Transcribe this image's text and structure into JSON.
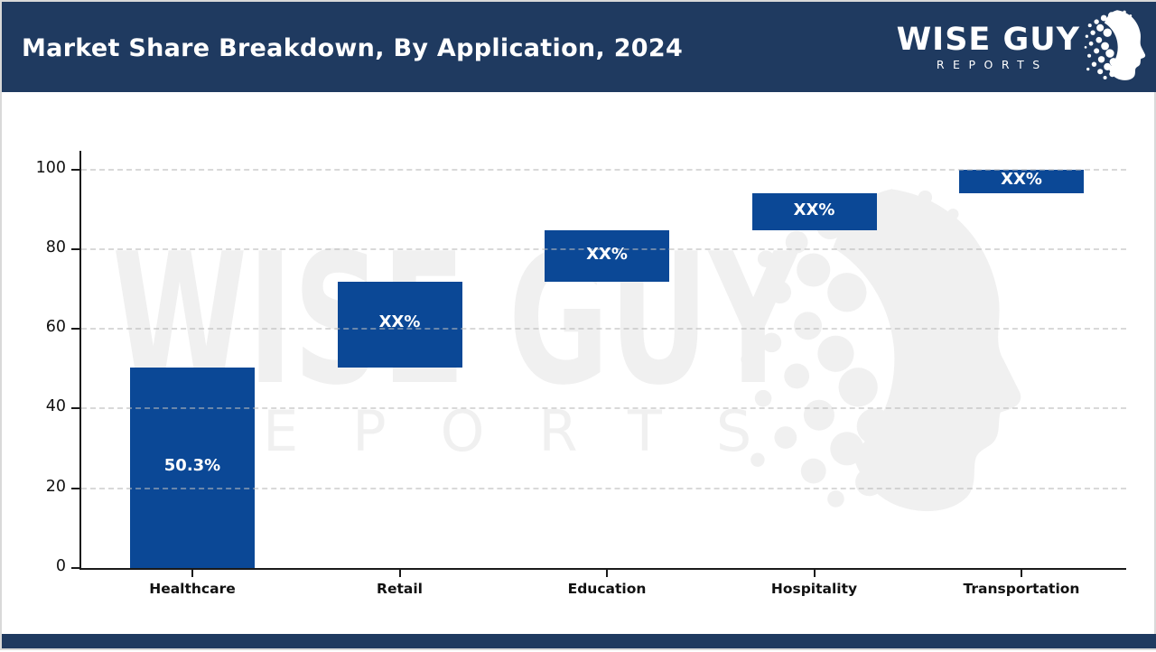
{
  "header": {
    "title": "Market Share Breakdown, By Application, 2024",
    "logo": {
      "line1": "WISE GUY",
      "line2": "REPORTS",
      "face_icon": "dotted-face-profile-icon"
    }
  },
  "watermark": {
    "line1": "WISE GUY",
    "line2": "REPORTS",
    "face_icon": "dotted-face-profile-icon"
  },
  "colors": {
    "header_bg": "#1f3a60",
    "footer_bg": "#1f3a60",
    "bar": "#0b4896",
    "bar_label": "#ffffff",
    "axis": "#1a1a1a",
    "tick_label": "#111111",
    "gridline": "#bbbbbb",
    "watermark": "#f0f0f0",
    "background": "#ffffff"
  },
  "chart_data": {
    "type": "bar",
    "subtype": "waterfall",
    "title": "Market Share Breakdown, By Application, 2024",
    "categories": [
      "Healthcare",
      "Retail",
      "Education",
      "Hospitality",
      "Transportation"
    ],
    "segments": [
      {
        "category": "Healthcare",
        "start": 0,
        "end": 50.3,
        "label": "50.3%"
      },
      {
        "category": "Retail",
        "start": 50.3,
        "end": 71.8,
        "label": "XX%"
      },
      {
        "category": "Education",
        "start": 71.8,
        "end": 84.7,
        "label": "XX%"
      },
      {
        "category": "Hospitality",
        "start": 84.7,
        "end": 93.9,
        "label": "XX%"
      },
      {
        "category": "Transportation",
        "start": 93.9,
        "end": 100,
        "label": "XX%"
      }
    ],
    "xlabel": "",
    "ylabel": "",
    "yticks": [
      0,
      20,
      40,
      60,
      80,
      100
    ],
    "ylim": [
      0,
      104.6
    ],
    "grid": "horizontal-dashed",
    "legend": "none"
  }
}
